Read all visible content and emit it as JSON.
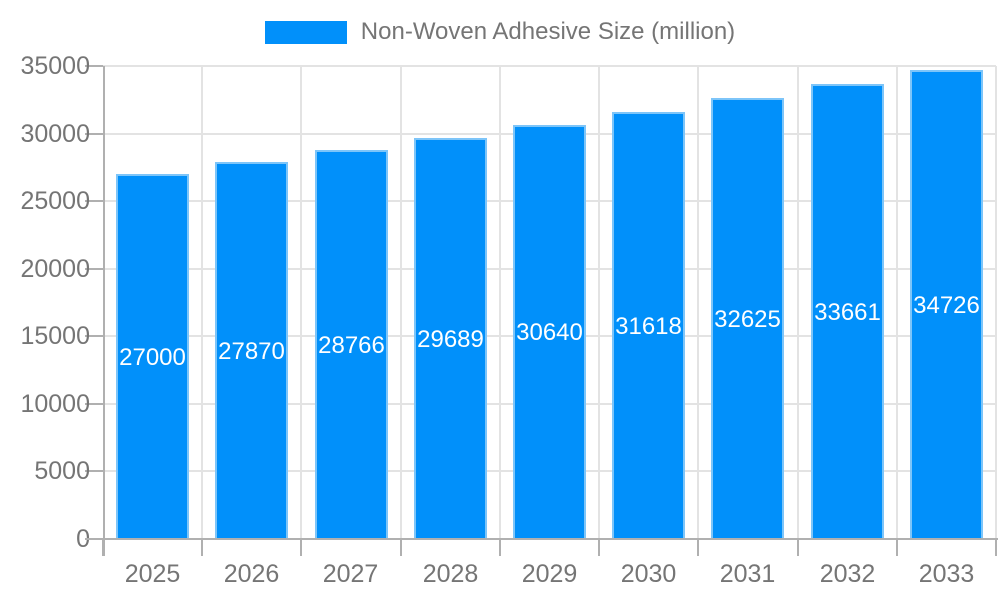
{
  "legend": {
    "label": "Non-Woven Adhesive Size (million)"
  },
  "colors": {
    "bar": "#0190fa",
    "bar_border": "#7dc5f9",
    "grid": "#e3e3e3",
    "axis": "#b0b0b0",
    "text": "#757575",
    "data_label": "#ffffff",
    "background": "#ffffff"
  },
  "chart_data": {
    "type": "bar",
    "title": "",
    "legend": "Non-Woven Adhesive Size (million)",
    "legend_position": "top",
    "categories": [
      "2025",
      "2026",
      "2027",
      "2028",
      "2029",
      "2030",
      "2031",
      "2032",
      "2033"
    ],
    "values": [
      27000,
      27870,
      28766,
      29689,
      30640,
      31618,
      32625,
      33661,
      34726
    ],
    "data_labels": [
      "27000",
      "27870",
      "28766",
      "29689",
      "30640",
      "31618",
      "32625",
      "33661",
      "34726"
    ],
    "data_label_position": "inside-center",
    "xlabel": "",
    "ylabel": "",
    "ylim": [
      0,
      35000
    ],
    "ytick_step": 5000,
    "ytick_labels": [
      "0",
      "5000",
      "10000",
      "15000",
      "20000",
      "25000",
      "30000",
      "35000"
    ],
    "grid": true
  }
}
